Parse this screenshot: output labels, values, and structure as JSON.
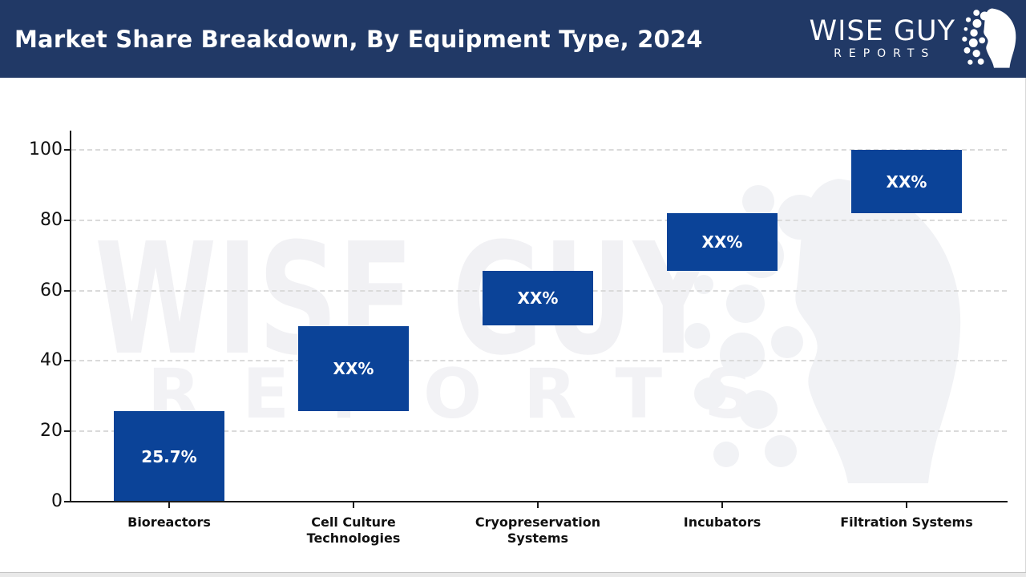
{
  "header": {
    "title": "Market Share Breakdown, By Equipment Type, 2024",
    "logo": {
      "line1": "WISE GUY",
      "line2": "REPORTS"
    },
    "bg_color": "#213966"
  },
  "watermark": {
    "line1": "WISE GUY",
    "line2": "REPORTS"
  },
  "chart_data": {
    "type": "bar",
    "subtype": "waterfall",
    "title": "Market Share Breakdown, By Equipment Type, 2024",
    "xlabel": "",
    "ylabel": "",
    "categories": [
      "Bioreactors",
      "Cell Culture\nTechnologies",
      "Cryopreservation\nSystems",
      "Incubators",
      "Filtration Systems"
    ],
    "bars": [
      {
        "start": 0,
        "end": 25.7,
        "label": "25.7%"
      },
      {
        "start": 25.7,
        "end": 50,
        "label": "XX%"
      },
      {
        "start": 50,
        "end": 65.5,
        "label": "XX%"
      },
      {
        "start": 65.5,
        "end": 82,
        "label": "XX%"
      },
      {
        "start": 82,
        "end": 100,
        "label": "XX%"
      }
    ],
    "ylim": [
      0,
      105
    ],
    "yticks": [
      0,
      20,
      40,
      60,
      80,
      100
    ],
    "grid": "horizontal dashed",
    "legend": "none",
    "bar_color": "#0b4398",
    "bar_label_color": "#ffffff"
  }
}
